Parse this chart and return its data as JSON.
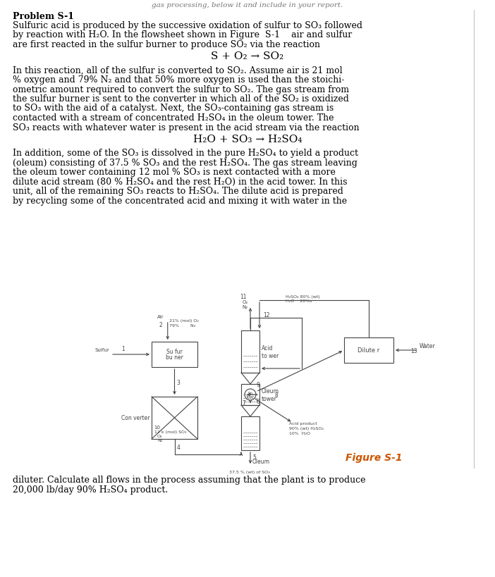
{
  "header_text": "gas processing, below it and include in your report.",
  "problem_title": "Problem S-1",
  "lines_p1": [
    "Sulfuric acid is produced by the successive oxidation of sulfur to SO₃ followed",
    "by reaction with H₂O. In the flowsheet shown in Figure  S-1    air and sulfur",
    "are first reacted in the sulfur burner to produce SO₂ via the reaction"
  ],
  "equation1": "S + O₂ → SO₂",
  "lines_p2": [
    "In this reaction, all of the sulfur is converted to SO₂. Assume air is 21 mol",
    "% oxygen and 79% N₂ and that 50% more oxygen is used than the stoichi-",
    "ometric amount required to convert the sulfur to SO₂. The gas stream from",
    "the sulfur burner is sent to the converter in which all of the SO₂ is oxidized",
    "to SO₃ with the aid of a catalyst. Next, the SO₃-containing gas stream is",
    "contacted with a stream of concentrated H₂SO₄ in the oleum tower. The",
    "SO₃ reacts with whatever water is present in the acid stream via the reaction"
  ],
  "equation2": "H₂O + SO₃ → H₂SO₄",
  "lines_p3": [
    "In addition, some of the SO₃ is dissolved in the pure H₂SO₄ to yield a product",
    "(oleum) consisting of 37.5 % SO₃ and the rest H₂SO₄. The gas stream leaving",
    "the oleum tower containing 12 mol % SO₃ is next contacted with a more",
    "dilute acid stream (80 % H₂SO₄ and the rest H₂O) in the acid tower. In this",
    "unit, all of the remaining SO₃ reacts to H₂SO₄. The dilute acid is prepared",
    "by recycling some of the concentrated acid and mixing it with water in the"
  ],
  "footer_lines": [
    "diluter. Calculate all flows in the process assuming that the plant is to produce",
    "20,000 lb/day 90% H₂SO₄ product."
  ],
  "figure_label": "Figure S-1",
  "bg_color": "#ffffff",
  "text_color": "#000000",
  "gray": "#444444",
  "orange": "#cc5500"
}
